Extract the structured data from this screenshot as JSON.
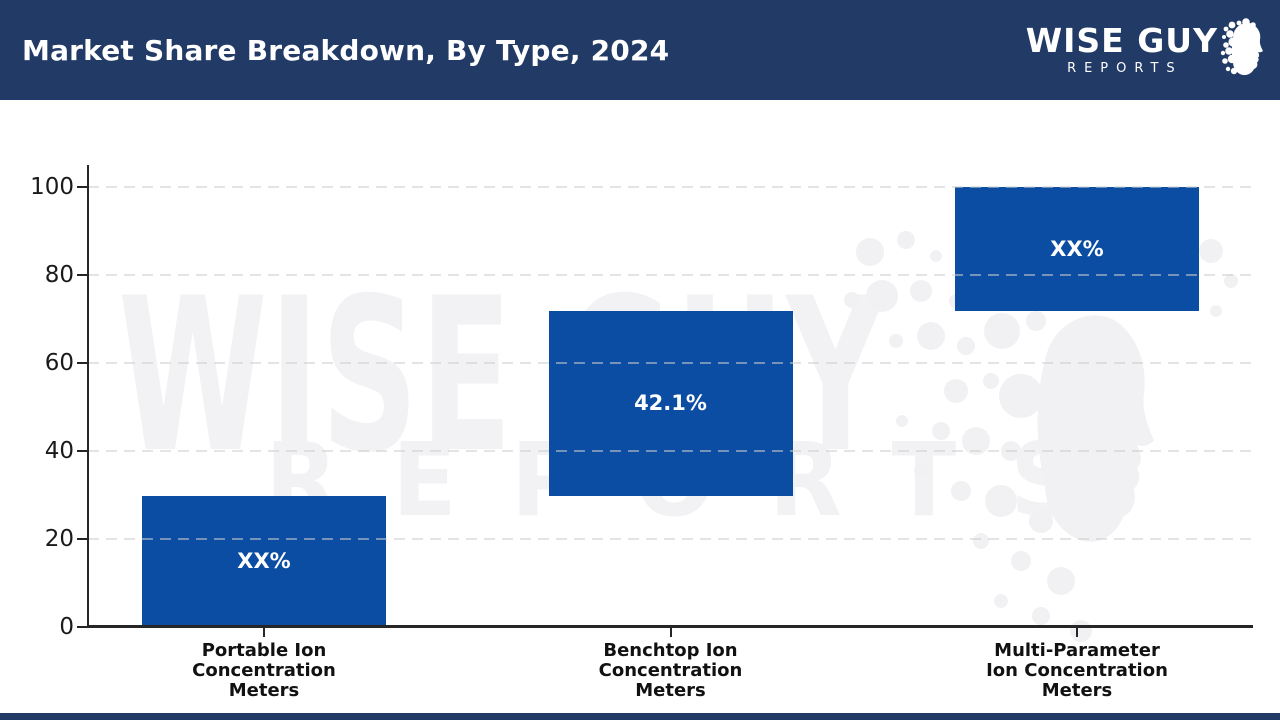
{
  "header": {
    "title": "Market Share Breakdown, By Type, 2024",
    "logo": {
      "wordmark": "WISE GUY",
      "subtext": "REPORTS"
    }
  },
  "watermark": {
    "wordmark": "WISE GUY",
    "subtext": "REPORTS"
  },
  "footer": {},
  "chart_data": {
    "type": "bar",
    "subtype": "floating-waterfall",
    "title": "Market Share Breakdown, By Type, 2024",
    "categories": [
      "Portable Ion Concentration Meters",
      "Benchtop Ion Concentration Meters",
      "Multi-Parameter Ion Concentration Meters"
    ],
    "category_lines": [
      [
        "Portable Ion",
        "Concentration",
        "Meters"
      ],
      [
        "Benchtop Ion",
        "Concentration",
        "Meters"
      ],
      [
        "Multi-Parameter",
        "Ion Concentration",
        "Meters"
      ]
    ],
    "bars": [
      {
        "label": "XX%",
        "start": 0,
        "end": 29.8
      },
      {
        "label": "42.1%",
        "start": 29.8,
        "end": 71.9
      },
      {
        "label": "XX%",
        "start": 71.9,
        "end": 100
      }
    ],
    "ylim": [
      0,
      100
    ],
    "yticks": [
      0,
      20,
      40,
      60,
      80,
      100
    ],
    "grid": "dashed-horizontal",
    "legend": "none",
    "colors": {
      "bar": "#0b4da2",
      "header_bg": "#213a66",
      "bar_label_text": "#ffffff",
      "axis": "#262626",
      "gridline": "#e3e3e3",
      "watermark": "#f2f2f5"
    }
  }
}
